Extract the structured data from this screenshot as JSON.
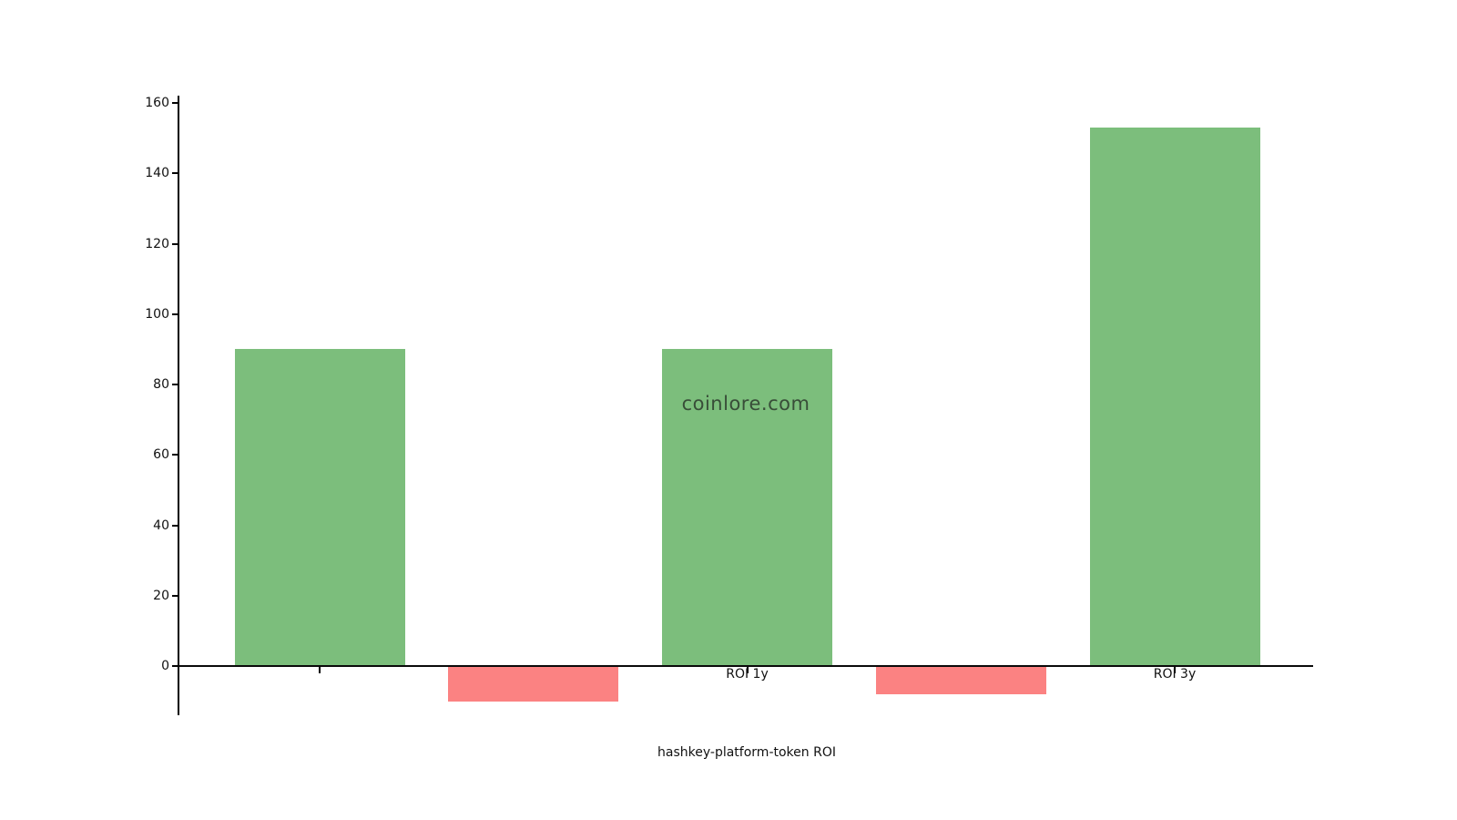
{
  "chart_data": {
    "type": "bar",
    "title": "",
    "xlabel": "hashkey-platform-token ROI",
    "ylabel": "",
    "categories": [
      "",
      "",
      "ROI 1y",
      "",
      "ROI 3y"
    ],
    "values": [
      90,
      -10,
      90,
      -8,
      153
    ],
    "positive_color": "#7cbe7c",
    "negative_color": "#fb8282",
    "axis_color": "#000000",
    "yticks": [
      0,
      20,
      40,
      60,
      80,
      100,
      120,
      140,
      160
    ],
    "xticks_shown_at": [
      0,
      2,
      4
    ],
    "ylim": [
      -14,
      162
    ],
    "grid": false,
    "legend": "none",
    "watermark": "coinlore.com"
  }
}
